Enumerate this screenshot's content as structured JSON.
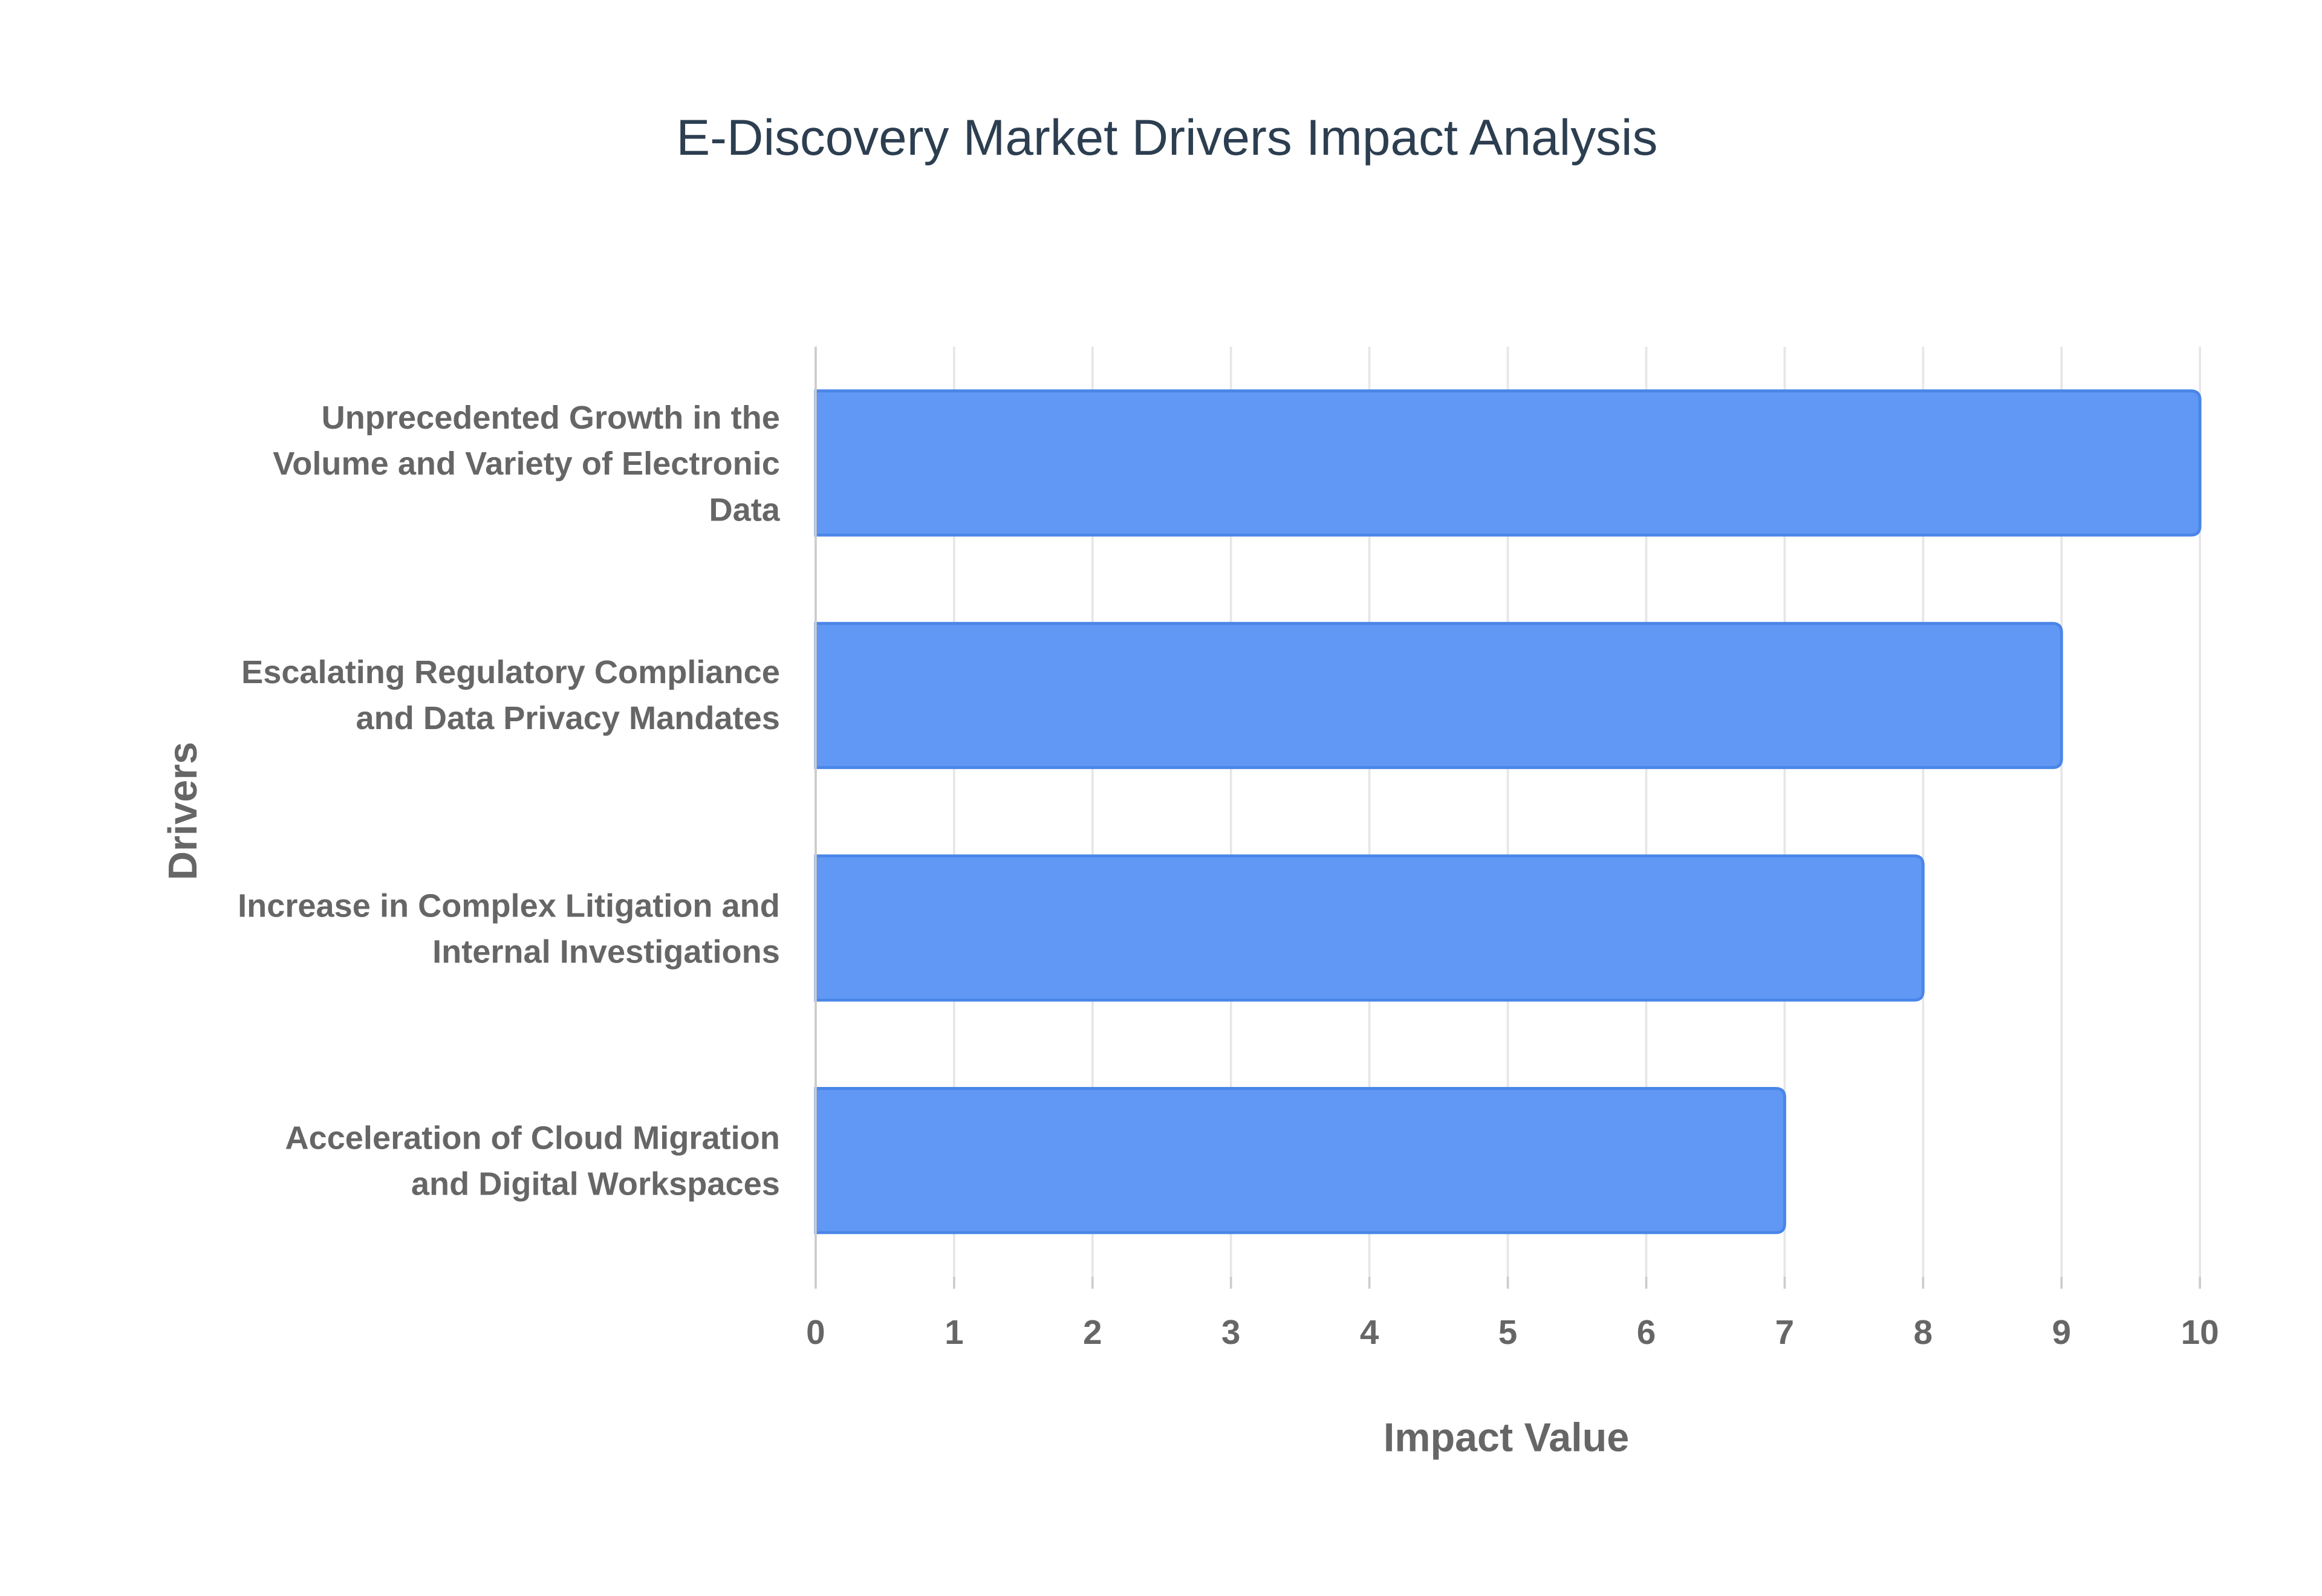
{
  "chart_data": {
    "type": "hbar",
    "title": "E-Discovery Market Drivers Impact Analysis",
    "x_label": "Impact Value",
    "y_label": "Drivers",
    "categories": [
      "Unprecedented Growth in the Volume and Variety of Electronic Data",
      "Escalating Regulatory Compliance and Data Privacy Mandates",
      "Increase in Complex Litigation and Internal Investigations",
      "Acceleration of Cloud Migration and Digital Workspaces"
    ],
    "values": [
      10,
      9,
      8,
      7
    ],
    "color": "#6198f5",
    "xlim": [
      0,
      10
    ],
    "xticks": [
      0,
      1,
      2,
      3,
      4,
      5,
      6,
      7,
      8,
      9,
      10
    ],
    "grid": true
  }
}
